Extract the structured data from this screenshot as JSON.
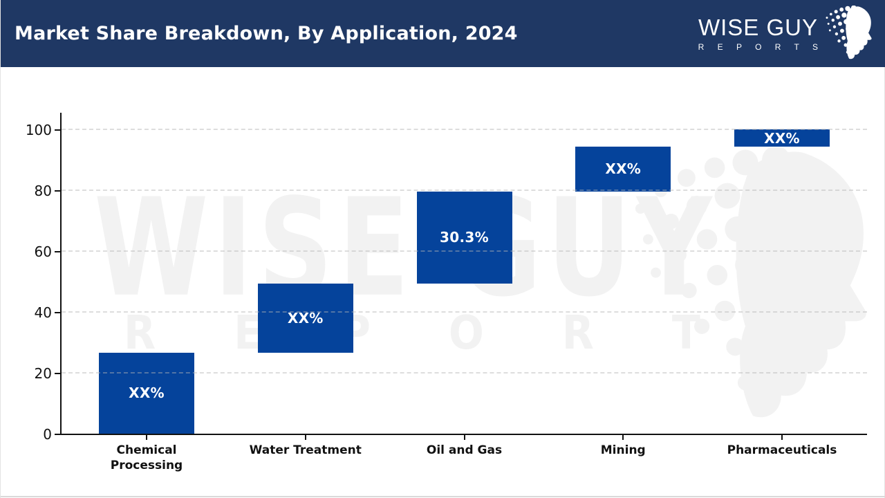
{
  "header": {
    "title": "Market Share Breakdown, By Application, 2024",
    "logo": {
      "name": "WISE GUY",
      "tagline": "R E P O R T S"
    }
  },
  "watermark": {
    "line1": "WISE GUY",
    "line2": "R E P O R T S"
  },
  "chart_data": {
    "type": "bar",
    "variant": "waterfall",
    "title": "Market Share Breakdown, By Application, 2024",
    "categories": [
      "Chemical Processing",
      "Water Treatment",
      "Oil and Gas",
      "Mining",
      "Pharmaceuticals"
    ],
    "series": [
      {
        "name": "Market share (%)",
        "values": [
          26.6,
          22.7,
          30.3,
          14.7,
          5.7
        ],
        "segment_start": [
          0,
          26.6,
          49.3,
          79.6,
          94.3
        ],
        "segment_end": [
          26.6,
          49.3,
          79.6,
          94.3,
          100
        ]
      }
    ],
    "bar_labels": [
      "XX%",
      "XX%",
      "30.3%",
      "XX%",
      "XX%"
    ],
    "xlabel": "",
    "ylabel": "",
    "yticks": [
      0,
      20,
      40,
      60,
      80,
      100
    ],
    "ylim": [
      0,
      105
    ],
    "grid": "horizontal-dashed",
    "legend": "none"
  },
  "colors": {
    "header_bg": "#1F3864",
    "bar": "#05439B",
    "grid": "#DFDFDF",
    "axis": "#111111",
    "bar_label_text": "#FFFFFF",
    "watermark": "#F2F2F2",
    "page_bg": "#FFFFFF"
  }
}
